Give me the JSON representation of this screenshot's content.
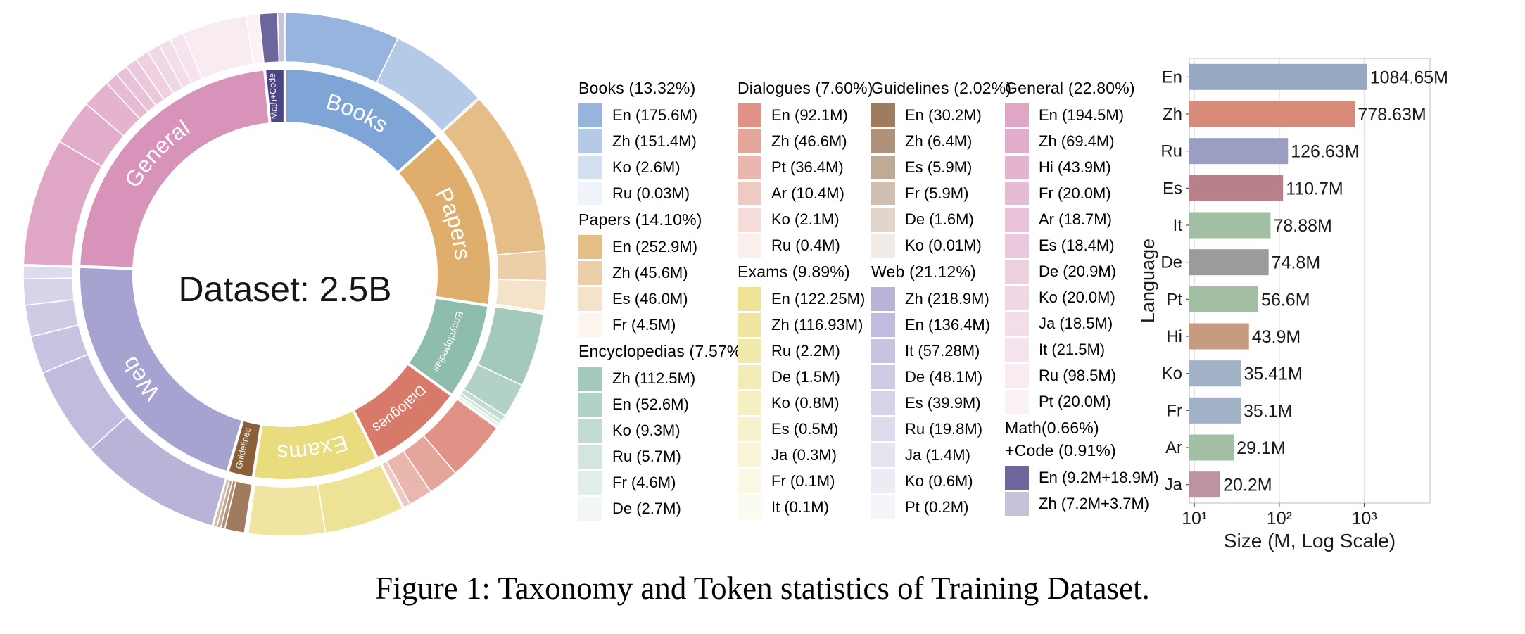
{
  "figure_caption": "Figure 1: Taxonomy and Token statistics of Training Dataset.",
  "chart_data": [
    {
      "type": "sunburst",
      "center_label": "Dataset: 2.5B",
      "categories": [
        {
          "name": "Books",
          "pct": 13.32,
          "color": "#7fa4d6",
          "legend_title": "Books (13.32%)",
          "languages": [
            {
              "lang": "En",
              "label": "En (175.6M)",
              "value": 175.6
            },
            {
              "lang": "Zh",
              "label": "Zh (151.4M)",
              "value": 151.4
            },
            {
              "lang": "Ko",
              "label": "Ko (2.6M)",
              "value": 2.6
            },
            {
              "lang": "Ru",
              "label": "Ru (0.03M)",
              "value": 0.03
            }
          ]
        },
        {
          "name": "Papers",
          "pct": 14.1,
          "color": "#dfae6d",
          "legend_title": "Papers (14.10%)",
          "languages": [
            {
              "lang": "En",
              "label": "En (252.9M)",
              "value": 252.9
            },
            {
              "lang": "Zh",
              "label": "Zh (45.6M)",
              "value": 45.6
            },
            {
              "lang": "Es",
              "label": "Es (46.0M)",
              "value": 46.0
            },
            {
              "lang": "Fr",
              "label": "Fr (4.5M)",
              "value": 4.5
            }
          ]
        },
        {
          "name": "Encyclopedias",
          "pct": 7.57,
          "color": "#8fbdad",
          "legend_title": "Encyclopedias (7.57%)",
          "languages": [
            {
              "lang": "Zh",
              "label": "Zh (112.5M)",
              "value": 112.5
            },
            {
              "lang": "En",
              "label": "En (52.6M)",
              "value": 52.6
            },
            {
              "lang": "Ko",
              "label": "Ko (9.3M)",
              "value": 9.3
            },
            {
              "lang": "Ru",
              "label": "Ru (5.7M)",
              "value": 5.7
            },
            {
              "lang": "Fr",
              "label": "Fr (4.6M)",
              "value": 4.6
            },
            {
              "lang": "De",
              "label": "De (2.7M)",
              "value": 2.7
            }
          ]
        },
        {
          "name": "Dialogues",
          "pct": 7.6,
          "color": "#d87a6a",
          "legend_title": "Dialogues (7.60%)",
          "languages": [
            {
              "lang": "En",
              "label": "En (92.1M)",
              "value": 92.1
            },
            {
              "lang": "Zh",
              "label": "Zh (46.6M)",
              "value": 46.6
            },
            {
              "lang": "Pt",
              "label": "Pt (36.4M)",
              "value": 36.4
            },
            {
              "lang": "Ar",
              "label": "Ar (10.4M)",
              "value": 10.4
            },
            {
              "lang": "Ko",
              "label": "Ko (2.1M)",
              "value": 2.1
            },
            {
              "lang": "Ru",
              "label": "Ru (0.4M)",
              "value": 0.4
            }
          ]
        },
        {
          "name": "Exams",
          "pct": 9.89,
          "color": "#e9dc7f",
          "legend_title": "Exams (9.89%)",
          "languages": [
            {
              "lang": "En",
              "label": "En (122.25M)",
              "value": 122.25
            },
            {
              "lang": "Zh",
              "label": "Zh (116.93M)",
              "value": 116.93
            },
            {
              "lang": "Ru",
              "label": "Ru (2.2M)",
              "value": 2.2
            },
            {
              "lang": "De",
              "label": "De (1.5M)",
              "value": 1.5
            },
            {
              "lang": "Ko",
              "label": "Ko (0.8M)",
              "value": 0.8
            },
            {
              "lang": "Es",
              "label": "Es (0.5M)",
              "value": 0.5
            },
            {
              "lang": "Ja",
              "label": "Ja (0.3M)",
              "value": 0.3
            },
            {
              "lang": "Fr",
              "label": "Fr (0.1M)",
              "value": 0.1
            },
            {
              "lang": "It",
              "label": "It (0.1M)",
              "value": 0.1
            }
          ]
        },
        {
          "name": "Guidelines",
          "pct": 2.02,
          "color": "#8a5f3a",
          "legend_title": "Guidelines (2.02%)",
          "languages": [
            {
              "lang": "En",
              "label": "En (30.2M)",
              "value": 30.2
            },
            {
              "lang": "Zh",
              "label": "Zh (6.4M)",
              "value": 6.4
            },
            {
              "lang": "Es",
              "label": "Es (5.9M)",
              "value": 5.9
            },
            {
              "lang": "Fr",
              "label": "Fr (5.9M)",
              "value": 5.9
            },
            {
              "lang": "De",
              "label": "De (1.6M)",
              "value": 1.6
            },
            {
              "lang": "Ko",
              "label": "Ko (0.01M)",
              "value": 0.01
            }
          ]
        },
        {
          "name": "Web",
          "pct": 21.12,
          "color": "#a7a3d0",
          "legend_title": "Web (21.12%)",
          "languages": [
            {
              "lang": "Zh",
              "label": "Zh (218.9M)",
              "value": 218.9
            },
            {
              "lang": "En",
              "label": "En (136.4M)",
              "value": 136.4
            },
            {
              "lang": "It",
              "label": "It (57.28M)",
              "value": 57.28
            },
            {
              "lang": "De",
              "label": "De (48.1M)",
              "value": 48.1
            },
            {
              "lang": "Es",
              "label": "Es (39.9M)",
              "value": 39.9
            },
            {
              "lang": "Ru",
              "label": "Ru (19.8M)",
              "value": 19.8
            },
            {
              "lang": "Ja",
              "label": "Ja (1.4M)",
              "value": 1.4
            },
            {
              "lang": "Ko",
              "label": "Ko (0.6M)",
              "value": 0.6
            },
            {
              "lang": "Pt",
              "label": "Pt (0.2M)",
              "value": 0.2
            }
          ]
        },
        {
          "name": "General",
          "pct": 22.8,
          "color": "#d893ba",
          "legend_title": "General (22.80%)",
          "languages": [
            {
              "lang": "En",
              "label": "En (194.5M)",
              "value": 194.5
            },
            {
              "lang": "Zh",
              "label": "Zh (69.4M)",
              "value": 69.4
            },
            {
              "lang": "Hi",
              "label": "Hi (43.9M)",
              "value": 43.9
            },
            {
              "lang": "Fr",
              "label": "Fr (20.0M)",
              "value": 20.0
            },
            {
              "lang": "Ar",
              "label": "Ar (18.7M)",
              "value": 18.7
            },
            {
              "lang": "Es",
              "label": "Es (18.4M)",
              "value": 18.4
            },
            {
              "lang": "De",
              "label": "De (20.9M)",
              "value": 20.9
            },
            {
              "lang": "Ko",
              "label": "Ko (20.0M)",
              "value": 20.0
            },
            {
              "lang": "Ja",
              "label": "Ja (18.5M)",
              "value": 18.5
            },
            {
              "lang": "It",
              "label": "It (21.5M)",
              "value": 21.5
            },
            {
              "lang": "Ru",
              "label": "Ru (98.5M)",
              "value": 98.5
            },
            {
              "lang": "Pt",
              "label": "Pt (20.0M)",
              "value": 20.0
            }
          ]
        },
        {
          "name": "Math+Code",
          "pct": 1.57,
          "color": "#4c4487",
          "legend_title_lines": [
            "Math(0.66%)",
            "+Code (0.91%)"
          ],
          "languages": [
            {
              "lang": "En",
              "label": "En (9.2M+18.9M)",
              "value": 28.1
            },
            {
              "lang": "Zh",
              "label": "Zh (7.2M+3.7M)",
              "value": 10.9
            }
          ]
        }
      ]
    },
    {
      "type": "bar",
      "orientation": "horizontal",
      "xlabel": "Size (M, Log Scale)",
      "ylabel": "Language",
      "xscale": "log",
      "xlim": [
        8.7,
        5960
      ],
      "xticks": [
        "10¹",
        "10²",
        "10³"
      ],
      "xtick_values": [
        10,
        100,
        1000
      ],
      "categories": [
        "En",
        "Zh",
        "Ru",
        "Es",
        "It",
        "De",
        "Pt",
        "Hi",
        "Ko",
        "Fr",
        "Ar",
        "Ja"
      ],
      "values": [
        1084.65,
        778.63,
        126.63,
        110.7,
        78.88,
        74.8,
        56.6,
        43.9,
        35.41,
        35.1,
        29.1,
        20.2
      ],
      "labels": [
        "1084.65M",
        "778.63M",
        "126.63M",
        "110.7M",
        "78.88M",
        "74.8M",
        "56.6M",
        "43.9M",
        "35.41M",
        "35.1M",
        "29.1M",
        "20.2M"
      ],
      "bar_colors": [
        "#97a8c3",
        "#d88b79",
        "#9a9ec3",
        "#b9808a",
        "#a2bfa3",
        "#9a9b9d",
        "#a2bfa3",
        "#c69b82",
        "#a1b1c6",
        "#a1b1c6",
        "#a2bfa3",
        "#bd93a3"
      ]
    }
  ],
  "legend": {
    "columns": [
      [
        "Books",
        "Papers",
        "Encyclopedias"
      ],
      [
        "Dialogues",
        "Exams"
      ],
      [
        "Guidelines",
        "Web"
      ],
      [
        "General",
        "Math+Code"
      ]
    ]
  }
}
